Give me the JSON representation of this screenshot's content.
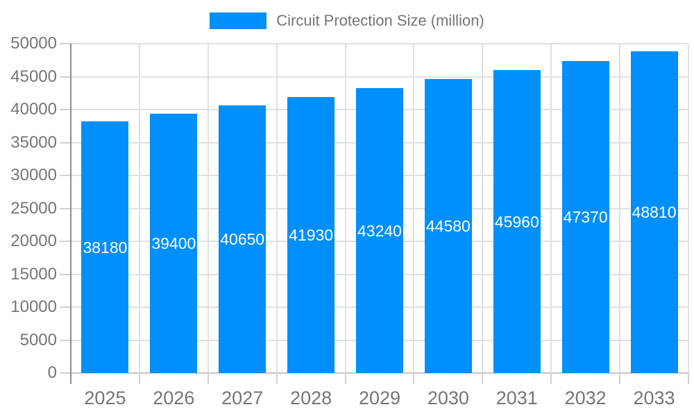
{
  "legend": {
    "label": "Circuit Protection Size (million)"
  },
  "chart_data": {
    "type": "bar",
    "title": "",
    "xlabel": "",
    "ylabel": "",
    "categories": [
      "2025",
      "2026",
      "2027",
      "2028",
      "2029",
      "2030",
      "2031",
      "2032",
      "2033"
    ],
    "values": [
      38180,
      39400,
      40650,
      41930,
      43240,
      44580,
      45960,
      47370,
      48810
    ],
    "series_name": "Circuit Protection Size (million)",
    "value_labels_shown": true,
    "ylim": [
      0,
      50000
    ],
    "ytick_step": 5000,
    "ytick_labels": [
      "0",
      "5000",
      "10000",
      "15000",
      "20000",
      "25000",
      "30000",
      "35000",
      "40000",
      "45000",
      "50000"
    ],
    "grid": true,
    "legend_position": "top-center",
    "colors": {
      "bar": "#008ffb",
      "value_label": "#ffffff",
      "axis_label": "#757575",
      "gridline": "#e0e0e0",
      "zero_line": "#c6c6c6",
      "axis_line": "#8c8c8c",
      "tick": "#d2d2d2",
      "background": "#ffffff"
    }
  }
}
